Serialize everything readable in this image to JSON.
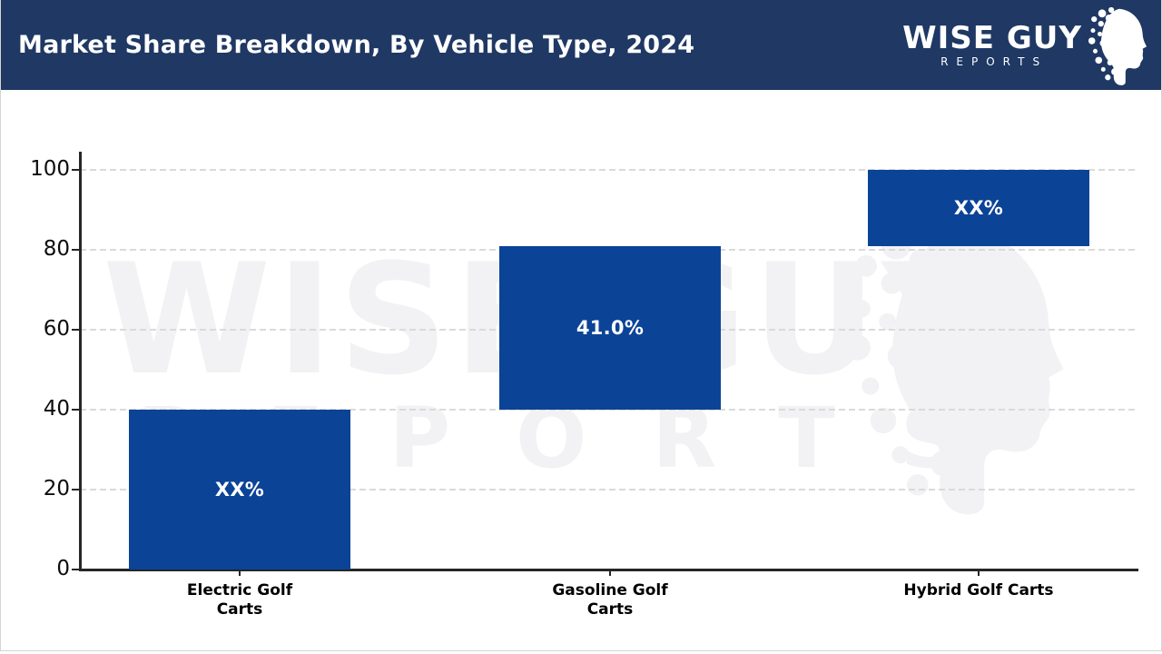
{
  "header": {
    "title": "Market Share Breakdown, By Vehicle Type, 2024",
    "logo": {
      "line1": "WISE GUY",
      "line2": "REPORTS"
    }
  },
  "watermark": {
    "line1": "WISE GUY",
    "line2": "REPORTS"
  },
  "chart_data": {
    "type": "bar",
    "subtype": "floating-waterfall",
    "title": "Market Share Breakdown, By Vehicle Type, 2024",
    "categories": [
      "Electric Golf Carts",
      "Gasoline Golf Carts",
      "Hybrid Golf Carts"
    ],
    "bars": [
      {
        "category_lines": [
          "Electric Golf",
          "Carts"
        ],
        "base": 0,
        "top": 40,
        "label": "XX%"
      },
      {
        "category_lines": [
          "Gasoline Golf",
          "Carts"
        ],
        "base": 40,
        "top": 81,
        "label": "41.0%"
      },
      {
        "category_lines": [
          "Hybrid Golf Carts"
        ],
        "base": 81,
        "top": 100,
        "label": "XX%"
      }
    ],
    "yticks": [
      0,
      20,
      40,
      60,
      80,
      100
    ],
    "ylim": [
      0,
      100
    ],
    "xlabel": "",
    "ylabel": "",
    "grid": {
      "axis": "y",
      "style": "dashed",
      "color": "#dadada"
    },
    "legend": null,
    "bar_color": "#0b4397",
    "bar_label_color": "#ffffff"
  },
  "colors": {
    "header_bg": "#1f3864",
    "bar": "#0b4397",
    "axis": "#262626",
    "grid": "#dadada",
    "watermark": "#f2f2f4",
    "page_border": "#d4d4d4"
  }
}
